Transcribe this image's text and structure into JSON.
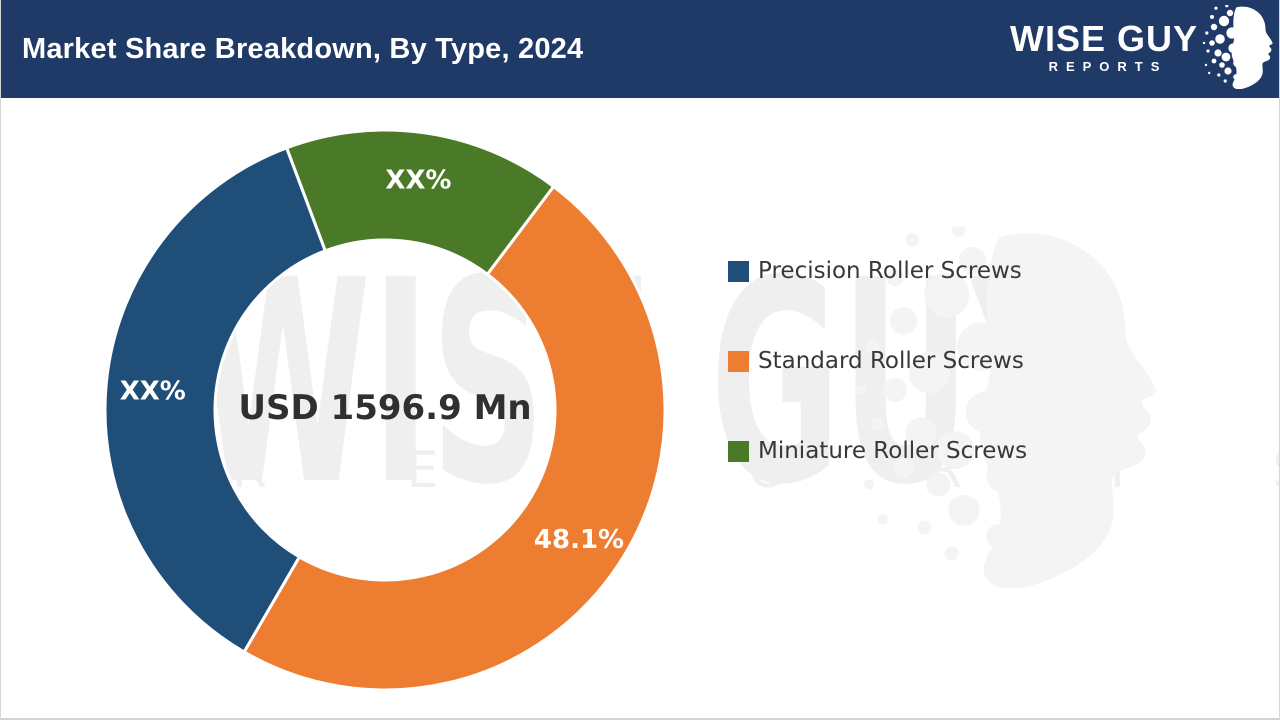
{
  "header": {
    "title": "Market Share Breakdown, By Type, 2024",
    "bg_color": "#1f3a66",
    "logo": {
      "line1": "WISE GUY",
      "line2": "REPORTS"
    }
  },
  "watermark": {
    "line1": "WISE GUY",
    "line2": "R E P O R T S"
  },
  "chart_data": {
    "type": "pie",
    "donut": true,
    "title": "Market Share Breakdown, By Type, 2024",
    "center_label": "USD 1596.9 Mn",
    "legend_position": "right",
    "start_angle_deg": 210.2,
    "slices": [
      {
        "name": "Precision Roller Screws",
        "pct": 35.9,
        "label": "XX%",
        "color": "#1f4e79"
      },
      {
        "name": "Miniature Roller Screws",
        "pct": 16.0,
        "label": "XX%",
        "color": "#4a7a28"
      },
      {
        "name": "Standard Roller Screws",
        "pct": 48.1,
        "label": "48.1%",
        "color": "#ed7d31"
      }
    ]
  },
  "legend": {
    "items": [
      {
        "label": "Precision Roller Screws",
        "color": "#1f4e79"
      },
      {
        "label": "Standard Roller Screws",
        "color": "#ed7d31"
      },
      {
        "label": "Miniature Roller Screws",
        "color": "#4a7a28"
      }
    ]
  }
}
